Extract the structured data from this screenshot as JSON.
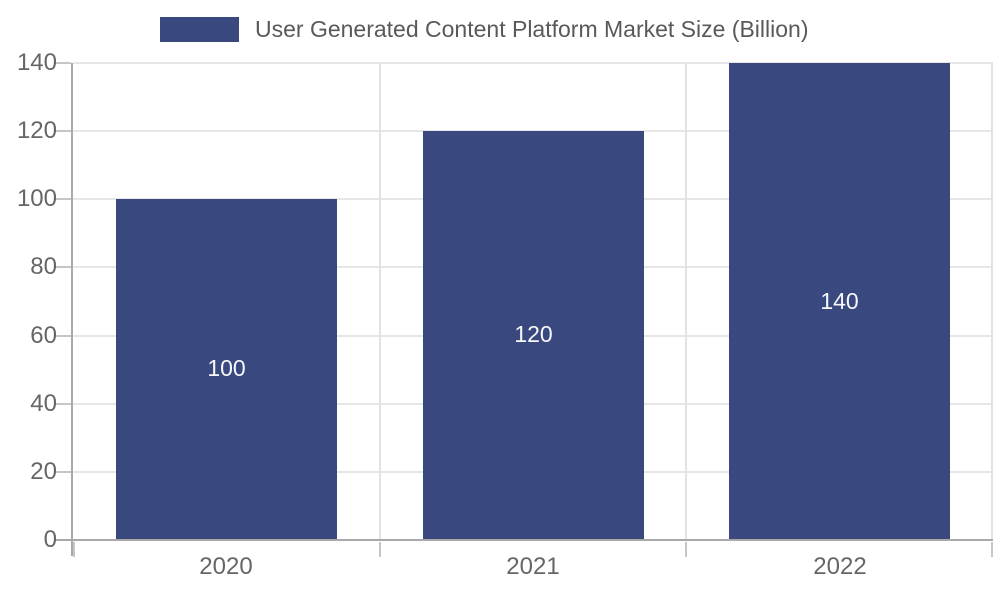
{
  "chart_data": {
    "type": "bar",
    "categories": [
      "2020",
      "2021",
      "2022"
    ],
    "series": [
      {
        "name": "User Generated Content Platform Market Size (Billion)",
        "values": [
          100,
          120,
          140
        ]
      }
    ],
    "value_labels": [
      "100",
      "120",
      "140"
    ],
    "value_label_position": "inside-center",
    "title": "",
    "xlabel": "",
    "ylabel": "",
    "ylim": [
      0,
      140
    ],
    "yticks": [
      0,
      20,
      40,
      60,
      80,
      100,
      120,
      140
    ],
    "grid": true,
    "legend_position": "top-center",
    "colors": {
      "bar_fill": "#394980",
      "legend_text": "#595959",
      "tick_text": "#666666",
      "value_label_text": "#f7f7f7",
      "gridline": "#e6e6e6",
      "category_gridline": "#e2e2e2",
      "axis_line": "#a9a9a9",
      "tick_mark": "#c6c6c6",
      "background": "#ffffff"
    }
  }
}
